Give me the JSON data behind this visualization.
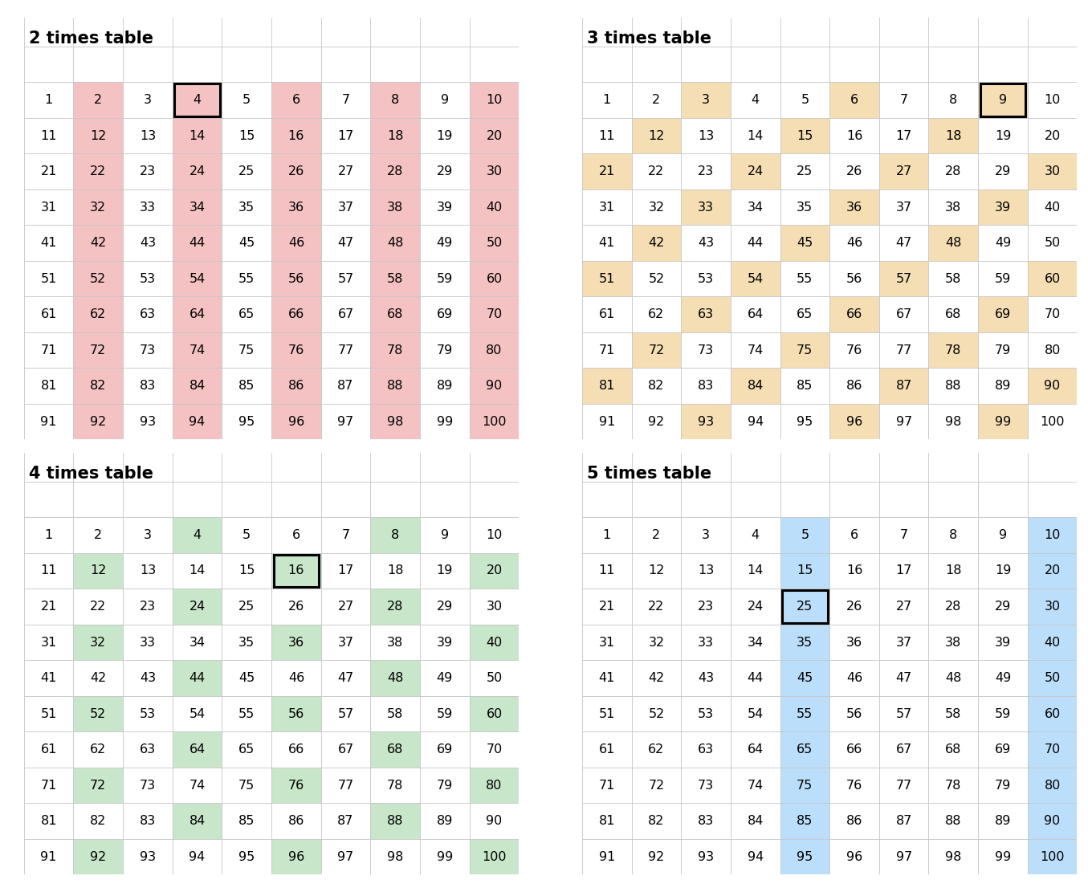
{
  "tables": [
    2,
    3,
    4,
    5
  ],
  "table_titles": [
    "2 times table",
    "3 times table",
    "4 times table",
    "5 times table"
  ],
  "highlight_colors": [
    "#f4c2c2",
    "#f5deb3",
    "#c8e6c9",
    "#bbdefb"
  ],
  "boxed_cells": [
    4,
    9,
    16,
    25
  ],
  "bg_color": "#ffffff",
  "grid_line_color": "#c8c8c8",
  "text_color": "#000000",
  "title_fontsize": 15,
  "num_fontsize": 11.5
}
